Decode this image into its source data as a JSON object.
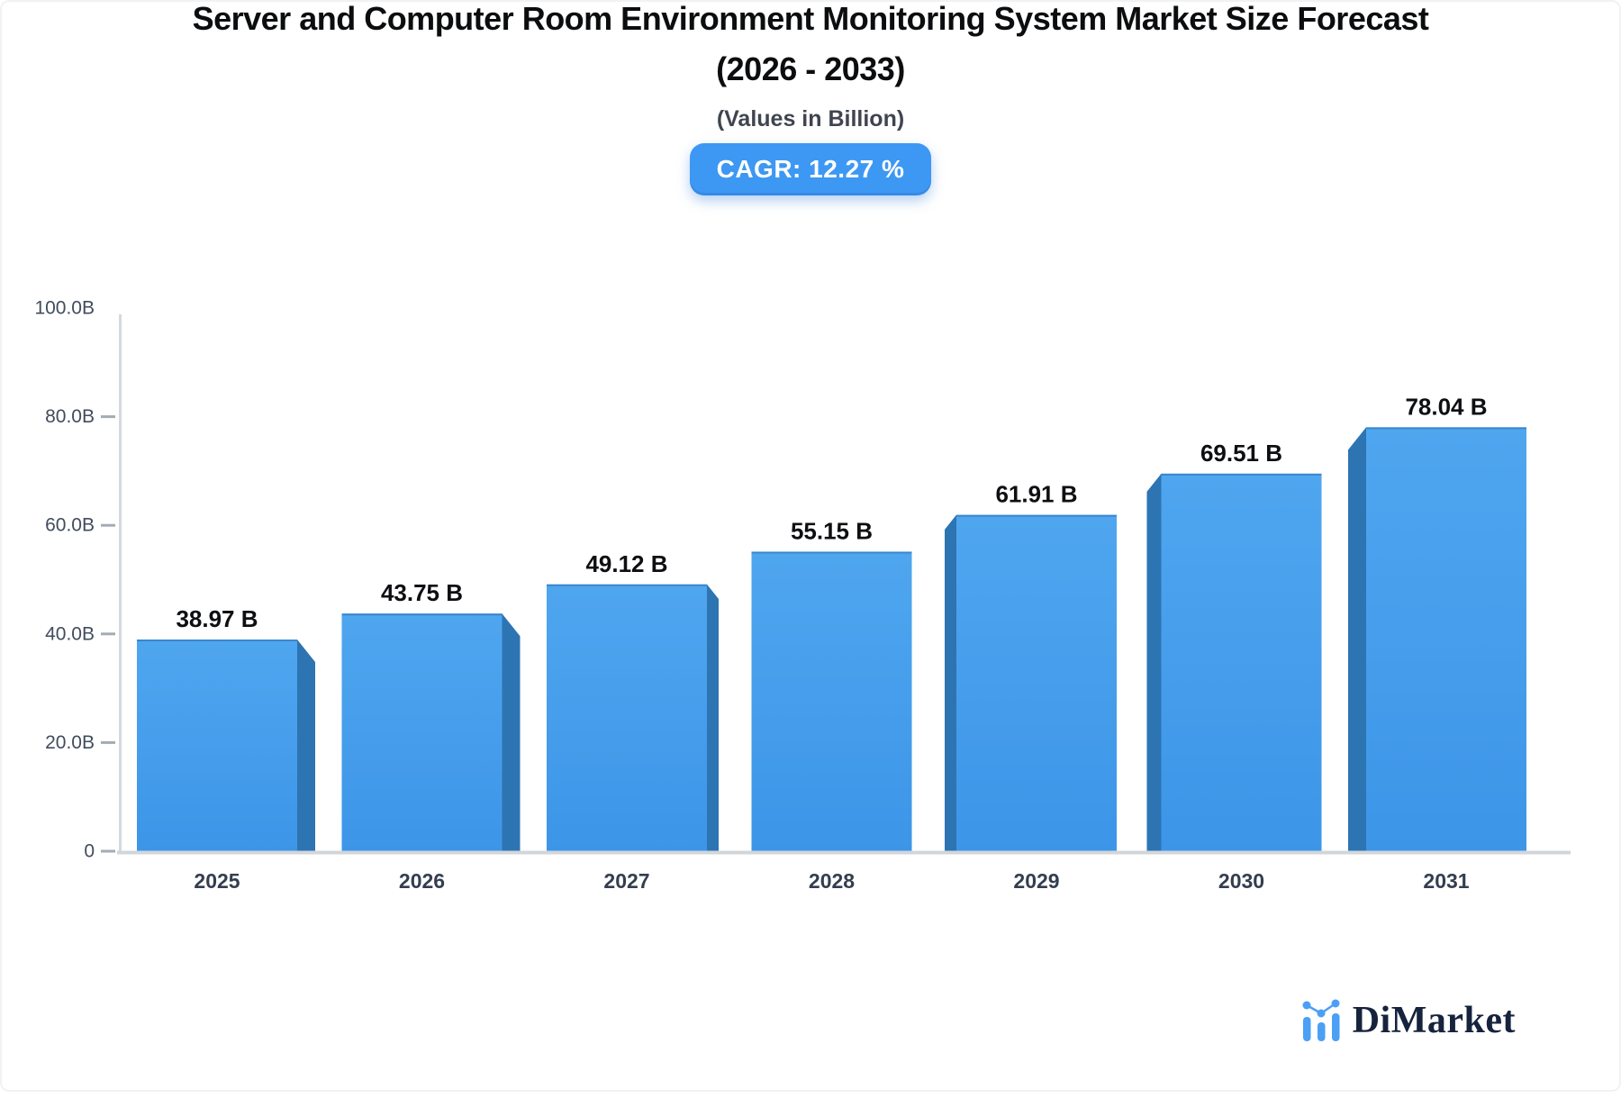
{
  "header": {
    "title_line1": "Server and Computer Room Environment Monitoring System Market Size Forecast",
    "title_line2": "(2026 - 2033)",
    "subtitle": "(Values in Billion)",
    "cagr_label": "CAGR: 12.27 %"
  },
  "chart_data": {
    "type": "bar",
    "title": "Server and Computer Room Environment Monitoring System Market Size Forecast (2026 - 2033)",
    "xlabel": "",
    "ylabel": "Values in Billion",
    "categories": [
      "2025",
      "2026",
      "2027",
      "2028",
      "2029",
      "2030",
      "2031"
    ],
    "values": [
      38.97,
      43.75,
      49.12,
      55.15,
      61.91,
      69.51,
      78.04
    ],
    "value_labels": [
      "38.97 B",
      "43.75 B",
      "49.12 B",
      "55.15 B",
      "61.91 B",
      "69.51 B",
      "78.04 B"
    ],
    "y_ticks": [
      {
        "value": 100,
        "label": "100.0B",
        "dash": false
      },
      {
        "value": 80,
        "label": "80.0B",
        "dash": true
      },
      {
        "value": 60,
        "label": "60.0B",
        "dash": true
      },
      {
        "value": 40,
        "label": "40.0B",
        "dash": true
      },
      {
        "value": 20,
        "label": "20.0B",
        "dash": true
      },
      {
        "value": 0,
        "label": "0",
        "dash": true
      }
    ],
    "ylim": [
      0,
      100
    ],
    "grid": false,
    "legend": false,
    "bar_style": "pseudo-3d",
    "colors": {
      "bar_top": "#4fa6ef",
      "bar_bottom": "#3d95e8",
      "bar_edge": "#3a86cd",
      "bar_side": "#2d74b2",
      "axis_line": "#d5d8de",
      "baseline": "#d2d6db",
      "tick_dash": "#a3abb6",
      "y_tick_text": "#414c5c",
      "x_tick_text": "#333e4f",
      "value_text": "#0d0f12"
    }
  },
  "badge": {
    "color": "#3d98f3",
    "text_color": "#ffffff"
  },
  "logo": {
    "text": "DiMarket",
    "icon": "bar-chart-logo-icon",
    "icon_color": "#4b9ff5",
    "text_color": "#16233d"
  }
}
